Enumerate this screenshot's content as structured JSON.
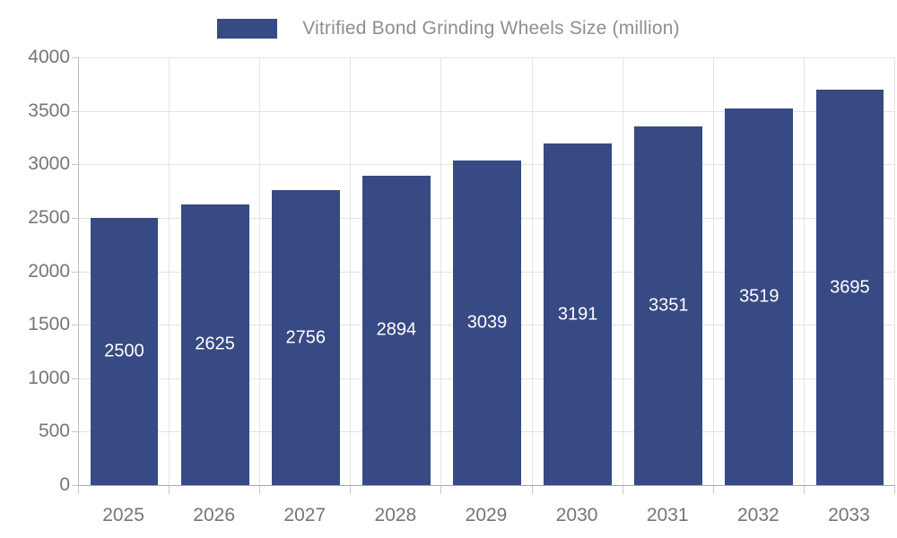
{
  "chart_data": {
    "type": "bar",
    "title": "",
    "xlabel": "",
    "ylabel": "",
    "legend": {
      "position": "top",
      "label": "Vitrified Bond Grinding Wheels Size (million)"
    },
    "categories": [
      "2025",
      "2026",
      "2027",
      "2028",
      "2029",
      "2030",
      "2031",
      "2032",
      "2033"
    ],
    "values": [
      2500,
      2625,
      2756,
      2894,
      3039,
      3191,
      3351,
      3519,
      3695
    ],
    "ylim": [
      0,
      4000
    ],
    "ytick_step": 500,
    "ytick_labels": [
      "0",
      "500",
      "1000",
      "1500",
      "2000",
      "2500",
      "3000",
      "3500",
      "4000"
    ],
    "grid": true,
    "value_labels_shown": true,
    "colors": {
      "bar": "#384a84",
      "value_label": "#ffffff",
      "axis_label": "#757575",
      "legend_text": "#8e8e8e",
      "grid_line": "#e3e3e3",
      "background": "#ffffff"
    }
  }
}
